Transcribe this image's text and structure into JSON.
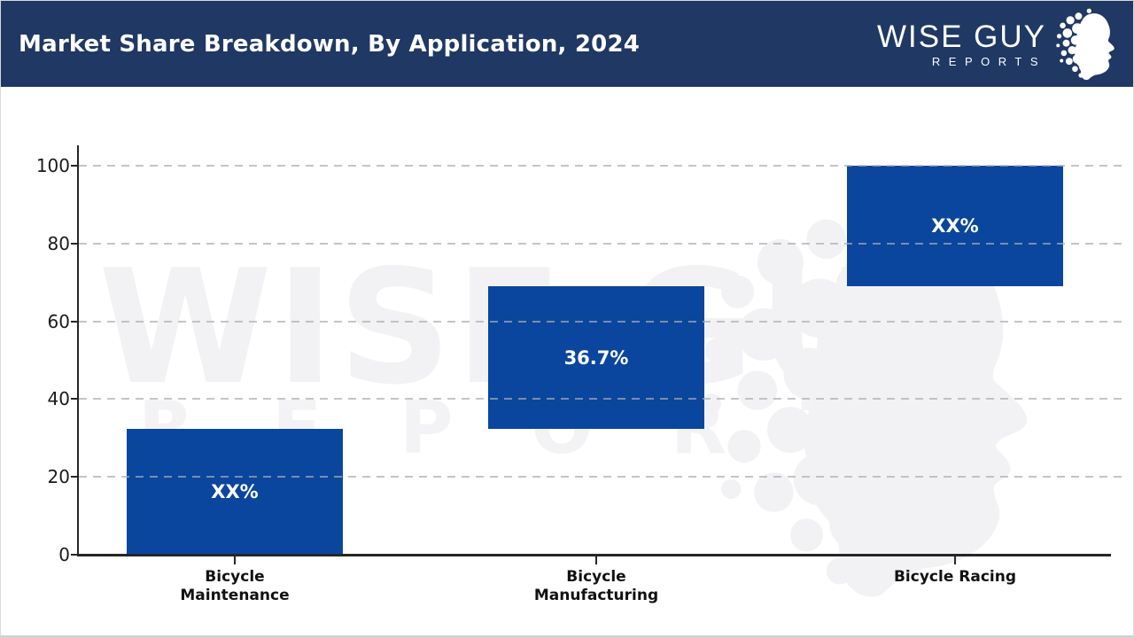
{
  "header": {
    "title": "Market Share Breakdown, By Application, 2024",
    "logo": {
      "wordmark": "WISE GUY",
      "subtext": "REPORTS"
    },
    "bg_color": "#1f3864"
  },
  "watermark": {
    "wordmark": "WISE GUY",
    "subtext": "REPORTS"
  },
  "chart_data": {
    "type": "bar",
    "subtype": "waterfall",
    "title": "Market Share Breakdown, By Application, 2024",
    "categories": [
      "Bicycle Maintenance",
      "Bicycle Manufacturing",
      "Bicycle Racing"
    ],
    "bars": [
      {
        "category": "Bicycle Maintenance",
        "category_lines": [
          "Bicycle",
          "Maintenance"
        ],
        "start": 0,
        "end": 32.3,
        "label": "XX%"
      },
      {
        "category": "Bicycle Manufacturing",
        "category_lines": [
          "Bicycle",
          "Manufacturing"
        ],
        "start": 32.3,
        "end": 69,
        "label": "36.7%"
      },
      {
        "category": "Bicycle Racing",
        "category_lines": [
          "Bicycle Racing"
        ],
        "start": 69,
        "end": 100,
        "label": "XX%"
      }
    ],
    "ylim": [
      0,
      100
    ],
    "yticks": [
      0,
      20,
      40,
      60,
      80,
      100
    ],
    "xlabel": "",
    "ylabel": "",
    "grid": "horizontal-dashed",
    "legend": "none",
    "bar_color": "#0a469e",
    "value_label_color": "#ffffff",
    "axis_color": "#262626"
  }
}
